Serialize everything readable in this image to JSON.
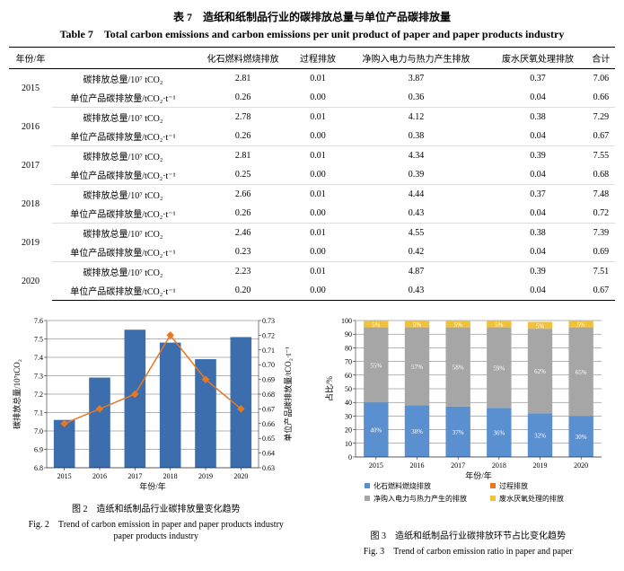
{
  "table": {
    "title_cn": "表 7　造纸和纸制品行业的碳排放总量与单位产品碳排放量",
    "title_en": "Table 7　Total carbon emissions and carbon emissions per unit product of paper and paper products industry",
    "headers": [
      "年份/年",
      "",
      "化石燃料燃烧排放",
      "过程排放",
      "净购入电力与热力产生排放",
      "废水厌氧处理排放",
      "合计"
    ],
    "row_label_total": "碳排放总量/10⁷ tCO₂",
    "row_label_unit": "单位产品碳排放量/tCO₂·t⁻¹",
    "rows": [
      {
        "year": "2015",
        "total": [
          "2.81",
          "0.01",
          "3.87",
          "0.37",
          "7.06"
        ],
        "unit": [
          "0.26",
          "0.00",
          "0.36",
          "0.04",
          "0.66"
        ]
      },
      {
        "year": "2016",
        "total": [
          "2.78",
          "0.01",
          "4.12",
          "0.38",
          "7.29"
        ],
        "unit": [
          "0.26",
          "0.00",
          "0.38",
          "0.04",
          "0.67"
        ]
      },
      {
        "year": "2017",
        "total": [
          "2.81",
          "0.01",
          "4.34",
          "0.39",
          "7.55"
        ],
        "unit": [
          "0.25",
          "0.00",
          "0.39",
          "0.04",
          "0.68"
        ]
      },
      {
        "year": "2018",
        "total": [
          "2.66",
          "0.01",
          "4.44",
          "0.37",
          "7.48"
        ],
        "unit": [
          "0.26",
          "0.00",
          "0.43",
          "0.04",
          "0.72"
        ]
      },
      {
        "year": "2019",
        "total": [
          "2.46",
          "0.01",
          "4.55",
          "0.38",
          "7.39"
        ],
        "unit": [
          "0.23",
          "0.00",
          "0.42",
          "0.04",
          "0.69"
        ]
      },
      {
        "year": "2020",
        "total": [
          "2.23",
          "0.01",
          "4.87",
          "0.39",
          "7.51"
        ],
        "unit": [
          "0.20",
          "0.00",
          "0.43",
          "0.04",
          "0.67"
        ]
      }
    ]
  },
  "chart1": {
    "type": "combo-bar-line",
    "caption_cn": "图 2　造纸和纸制品行业碳排放量变化趋势",
    "caption_en": "Fig. 2　Trend of carbon emission in paper and paper products industry",
    "categories": [
      "2015",
      "2016",
      "2017",
      "2018",
      "2019",
      "2020"
    ],
    "xlabel": "年份/年",
    "ylabel_left": "碳排放总量/10⁷tCO₂",
    "ylabel_right": "单位产品碳排放量/tCO₂·t⁻¹",
    "bar_values": [
      7.06,
      7.29,
      7.55,
      7.48,
      7.39,
      7.51
    ],
    "line_values": [
      0.66,
      0.67,
      0.68,
      0.72,
      0.69,
      0.67
    ],
    "yleft_min": 6.8,
    "yleft_max": 7.6,
    "yleft_step": 0.1,
    "yright_min": 0.63,
    "yright_max": 0.73,
    "yright_step": 0.01,
    "bar_color": "#3c6ead",
    "line_color": "#e87722",
    "marker_color": "#e87722",
    "grid_color": "#000000",
    "background_color": "#ffffff"
  },
  "chart2": {
    "type": "stacked-bar",
    "caption_cn": "图 3　造纸和纸制品行业碳排放环节占比变化趋势",
    "caption_en": "Fig. 3　Trend of carbon emission ratio in paper and paper",
    "categories": [
      "2015",
      "2016",
      "2017",
      "2018",
      "2019",
      "2020"
    ],
    "xlabel": "年份/年",
    "ylabel": "占比/%",
    "y_min": 0,
    "y_max": 100,
    "y_step": 10,
    "legend": [
      "化石燃料燃烧排放",
      "过程排放",
      "净购入电力与热力产生的排放",
      "废水厌氧处理的排放"
    ],
    "colors": [
      "#5a8fd0",
      "#e87722",
      "#a6a6a6",
      "#f0c23c"
    ],
    "series": [
      [
        40,
        38,
        37,
        36,
        32,
        30
      ],
      [
        0,
        0,
        0,
        0,
        0,
        0
      ],
      [
        55,
        57,
        58,
        59,
        62,
        65
      ],
      [
        5,
        5,
        5,
        5,
        5,
        5
      ]
    ],
    "bar_labels": [
      [
        "40%",
        "38%",
        "37%",
        "36%",
        "32%",
        "30%"
      ],
      [
        "",
        "",
        "",
        "",
        "",
        ""
      ],
      [
        "55%",
        "57%",
        "58%",
        "59%",
        "62%",
        "65%"
      ],
      [
        "5%",
        "5%",
        "5%",
        "5%",
        "5%",
        "5%"
      ]
    ],
    "background_color": "#ffffff"
  }
}
